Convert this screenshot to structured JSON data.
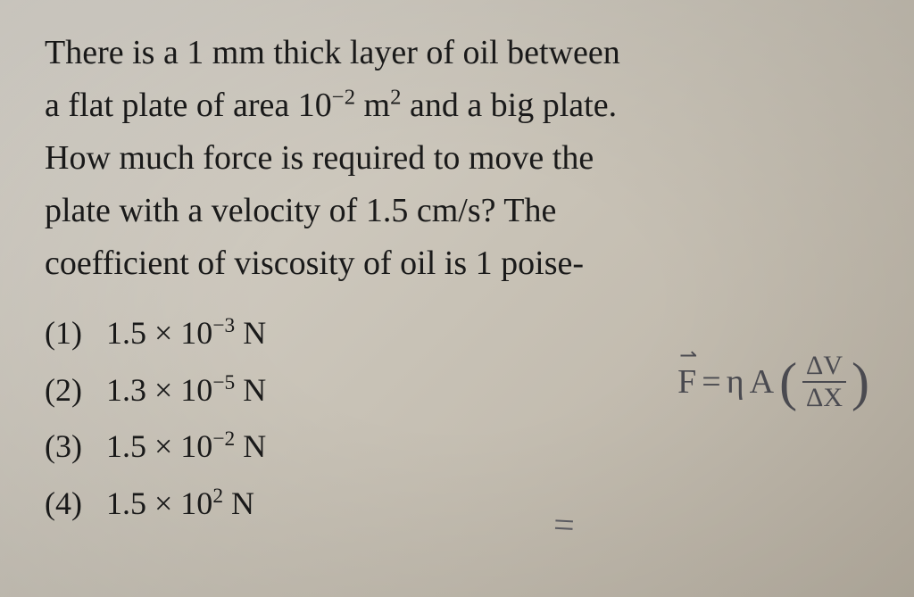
{
  "question": {
    "line1": "There is a 1 mm thick layer of oil between",
    "line2_part1": "a flat plate of area 10",
    "line2_exp1": "−2",
    "line2_part2": " m",
    "line2_exp2": "2",
    "line2_part3": " and a big plate.",
    "line3": "How much force is required to move the",
    "line4": "plate with a velocity of 1.5 cm/s? The",
    "line5": "coefficient of viscosity of oil is 1 poise-"
  },
  "options": [
    {
      "num": "(1)",
      "val_part1": "1.5 × 10",
      "exp": "−3",
      "unit": " N"
    },
    {
      "num": "(2)",
      "val_part1": "1.3 × 10",
      "exp": "−5",
      "unit": " N"
    },
    {
      "num": "(3)",
      "val_part1": "1.5 × 10",
      "exp": "−2",
      "unit": " N"
    },
    {
      "num": "(4)",
      "val_part1": "1.5 × 10",
      "exp": "2",
      "unit": " N"
    }
  ],
  "formula": {
    "F": "F",
    "eq": "=",
    "eta": "η",
    "A": "A",
    "frac_top": "ΔV",
    "frac_bot": "ΔX"
  },
  "handwritten_eq": "=",
  "colors": {
    "text": "#1a1a1a",
    "handwriting": "#4a4a50",
    "bg_light": "#d8d4cc",
    "bg_dark": "#b8b0a2"
  }
}
